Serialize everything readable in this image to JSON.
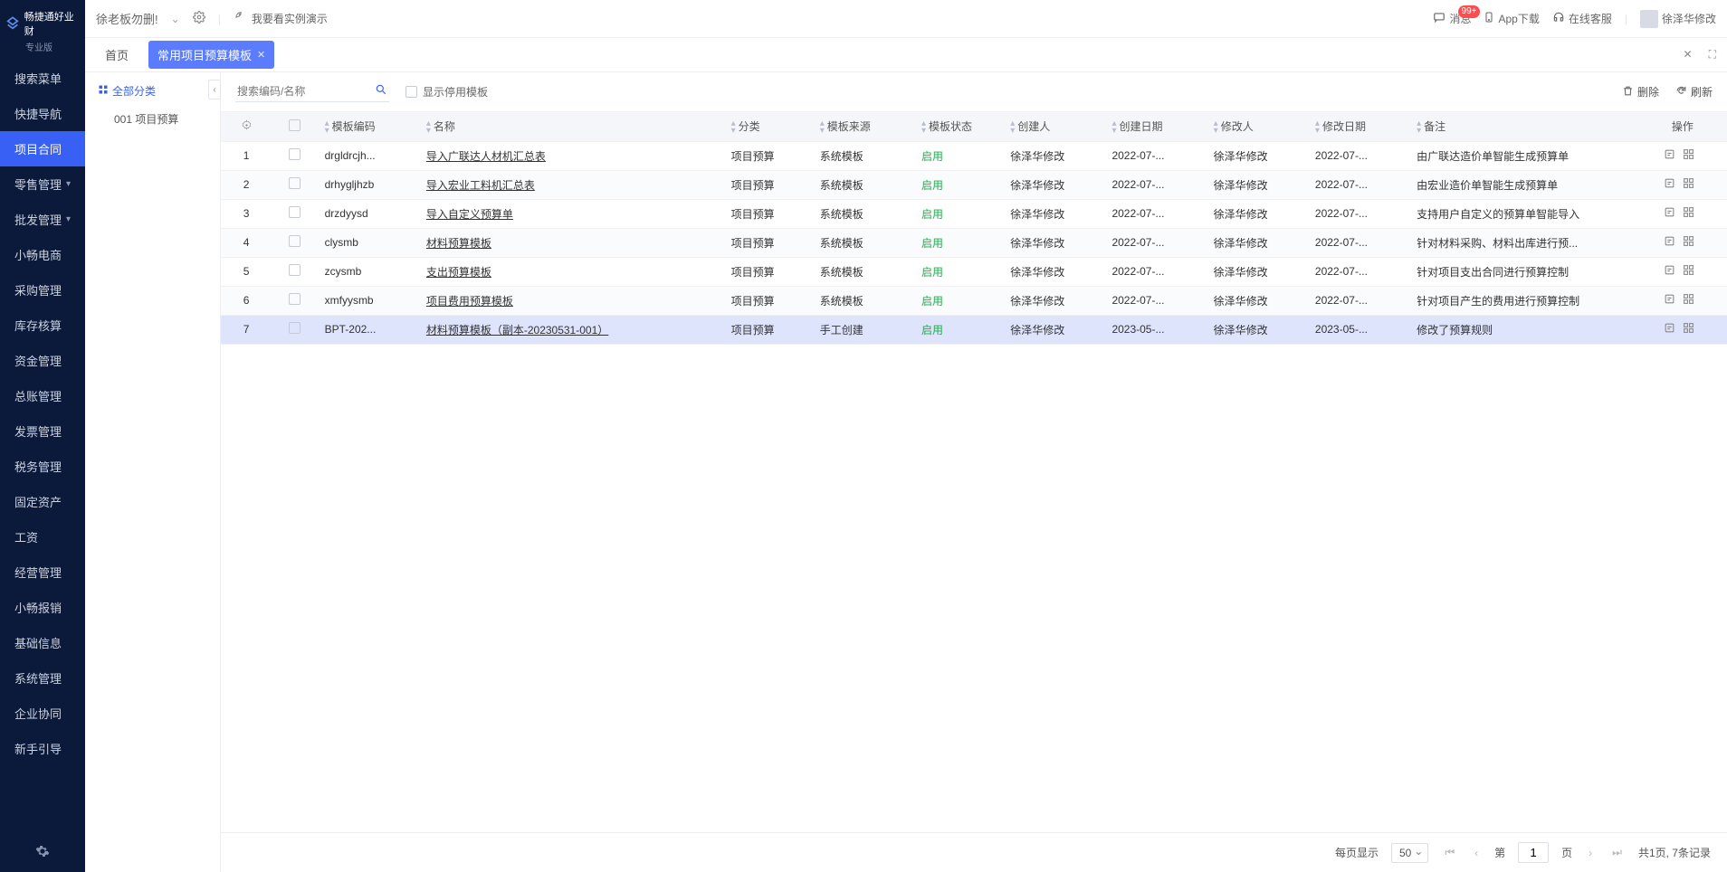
{
  "brand": {
    "name": "畅捷通好业财",
    "edition": "专业版"
  },
  "sidebar": {
    "items": [
      {
        "label": "搜索菜单",
        "caret": false
      },
      {
        "label": "快捷导航",
        "caret": false
      },
      {
        "label": "项目合同",
        "caret": false,
        "active": true
      },
      {
        "label": "零售管理",
        "caret": true
      },
      {
        "label": "批发管理",
        "caret": true
      },
      {
        "label": "小畅电商",
        "caret": false
      },
      {
        "label": "采购管理",
        "caret": false
      },
      {
        "label": "库存核算",
        "caret": false
      },
      {
        "label": "资金管理",
        "caret": false
      },
      {
        "label": "总账管理",
        "caret": false
      },
      {
        "label": "发票管理",
        "caret": false
      },
      {
        "label": "税务管理",
        "caret": false
      },
      {
        "label": "固定资产",
        "caret": false
      },
      {
        "label": "工资",
        "caret": false
      },
      {
        "label": "经营管理",
        "caret": false
      },
      {
        "label": "小畅报销",
        "caret": false
      },
      {
        "label": "基础信息",
        "caret": false
      },
      {
        "label": "系统管理",
        "caret": false
      },
      {
        "label": "企业协同",
        "caret": false
      },
      {
        "label": "新手引导",
        "caret": false
      }
    ]
  },
  "topbar": {
    "greeting": "徐老板勿删!",
    "demo": "我要看实例演示",
    "msg": "消息",
    "msg_badge": "99+",
    "app": "App下载",
    "cs": "在线客服",
    "user": "徐泽华修改"
  },
  "tabs": {
    "home": "首页",
    "active": "常用项目预算模板"
  },
  "category": {
    "all": "全部分类",
    "items": [
      "001 项目预算"
    ]
  },
  "toolbar": {
    "search_ph": "搜索编码/名称",
    "show_disabled": "显示停用模板",
    "delete": "删除",
    "refresh": "刷新"
  },
  "columns": {
    "code": "模板编码",
    "name": "名称",
    "cat": "分类",
    "src": "模板来源",
    "status": "模板状态",
    "creator": "创建人",
    "cdate": "创建日期",
    "modifier": "修改人",
    "mdate": "修改日期",
    "remark": "备注",
    "op": "操作"
  },
  "rows": [
    {
      "idx": "1",
      "code": "drgldrcjh...",
      "name": "导入广联达人材机汇总表",
      "cat": "项目预算",
      "src": "系统模板",
      "status": "启用",
      "creator": "徐泽华修改",
      "cdate": "2022-07-...",
      "modifier": "徐泽华修改",
      "mdate": "2022-07-...",
      "remark": "由广联达造价单智能生成预算单"
    },
    {
      "idx": "2",
      "code": "drhygljhzb",
      "name": "导入宏业工料机汇总表",
      "cat": "项目预算",
      "src": "系统模板",
      "status": "启用",
      "creator": "徐泽华修改",
      "cdate": "2022-07-...",
      "modifier": "徐泽华修改",
      "mdate": "2022-07-...",
      "remark": "由宏业造价单智能生成预算单"
    },
    {
      "idx": "3",
      "code": "drzdyysd",
      "name": "导入自定义预算单",
      "cat": "项目预算",
      "src": "系统模板",
      "status": "启用",
      "creator": "徐泽华修改",
      "cdate": "2022-07-...",
      "modifier": "徐泽华修改",
      "mdate": "2022-07-...",
      "remark": "支持用户自定义的预算单智能导入"
    },
    {
      "idx": "4",
      "code": "clysmb",
      "name": "材料预算模板",
      "cat": "项目预算",
      "src": "系统模板",
      "status": "启用",
      "creator": "徐泽华修改",
      "cdate": "2022-07-...",
      "modifier": "徐泽华修改",
      "mdate": "2022-07-...",
      "remark": "针对材料采购、材料出库进行预..."
    },
    {
      "idx": "5",
      "code": "zcysmb",
      "name": "支出预算模板",
      "cat": "项目预算",
      "src": "系统模板",
      "status": "启用",
      "creator": "徐泽华修改",
      "cdate": "2022-07-...",
      "modifier": "徐泽华修改",
      "mdate": "2022-07-...",
      "remark": "针对项目支出合同进行预算控制"
    },
    {
      "idx": "6",
      "code": "xmfyysmb",
      "name": "项目费用预算模板",
      "cat": "项目预算",
      "src": "系统模板",
      "status": "启用",
      "creator": "徐泽华修改",
      "cdate": "2022-07-...",
      "modifier": "徐泽华修改",
      "mdate": "2022-07-...",
      "remark": "针对项目产生的费用进行预算控制"
    },
    {
      "idx": "7",
      "code": "BPT-202...",
      "name": "材料预算模板（副本-20230531-001）",
      "cat": "项目预算",
      "src": "手工创建",
      "status": "启用",
      "creator": "徐泽华修改",
      "cdate": "2023-05-...",
      "modifier": "徐泽华修改",
      "mdate": "2023-05-...",
      "remark": "修改了预算规则",
      "hovered": true
    }
  ],
  "pager": {
    "per_page_label": "每页显示",
    "per_page": "50",
    "page_prefix": "第",
    "page": "1",
    "page_suffix": "页",
    "total": "共1页, 7条记录"
  }
}
